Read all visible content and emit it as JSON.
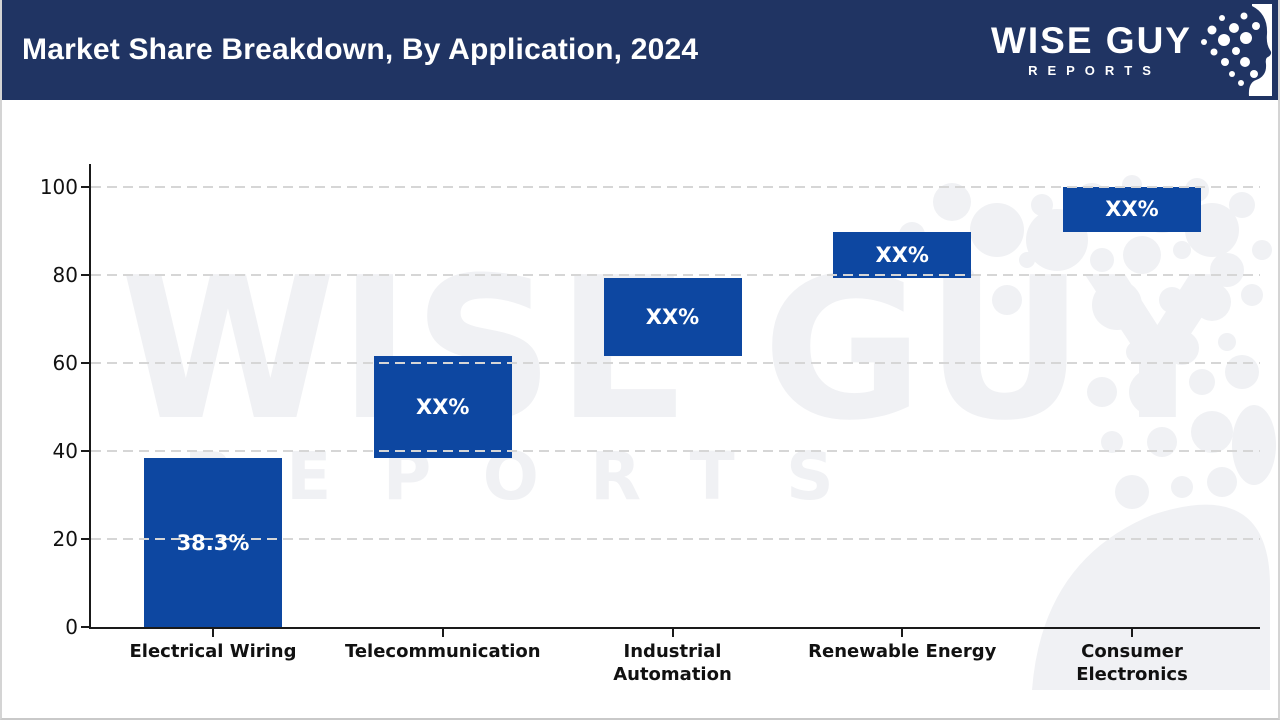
{
  "header": {
    "title": "Market Share Breakdown, By Application, 2024",
    "logo": {
      "wordmark": "WISE GUY",
      "sub": "REPORTS"
    }
  },
  "watermark": {
    "wordmark": "WISE GUY",
    "sub": "REPORTS"
  },
  "chart_data": {
    "type": "bar",
    "subtype": "floating-segment-waterfall",
    "title": "Market Share Breakdown, By Application, 2024",
    "categories": [
      "Electrical Wiring",
      "Telecommunication",
      "Industrial\nAutomation",
      "Renewable Energy",
      "Consumer\nElectronics"
    ],
    "segments": [
      {
        "category": "Electrical Wiring",
        "start": 0,
        "end": 38.3,
        "label": "38.3%"
      },
      {
        "category": "Telecommunication",
        "start": 38.3,
        "end": 61.6,
        "label": "XX%"
      },
      {
        "category": "Industrial Automation",
        "start": 61.6,
        "end": 79.4,
        "label": "XX%"
      },
      {
        "category": "Renewable Energy",
        "start": 79.4,
        "end": 89.8,
        "label": "XX%"
      },
      {
        "category": "Consumer Electronics",
        "start": 89.8,
        "end": 100,
        "label": "XX%"
      }
    ],
    "yticks": [
      0,
      20,
      40,
      60,
      80,
      100
    ],
    "ylim": [
      0,
      105
    ],
    "xlabel": "",
    "ylabel": "",
    "legend": "none",
    "grid": "horizontal-dashed-above-bars",
    "bar_color": "#0d47a1",
    "bar_label_color": "#ffffff",
    "axis_color": "#1a1a1a",
    "grid_color": "#d6d6d6"
  },
  "colors": {
    "header_bg": "#203463",
    "page_bg": "#ffffff",
    "watermark": "#f0f1f4",
    "frame_border": "#cccccc",
    "text": "#111111"
  }
}
